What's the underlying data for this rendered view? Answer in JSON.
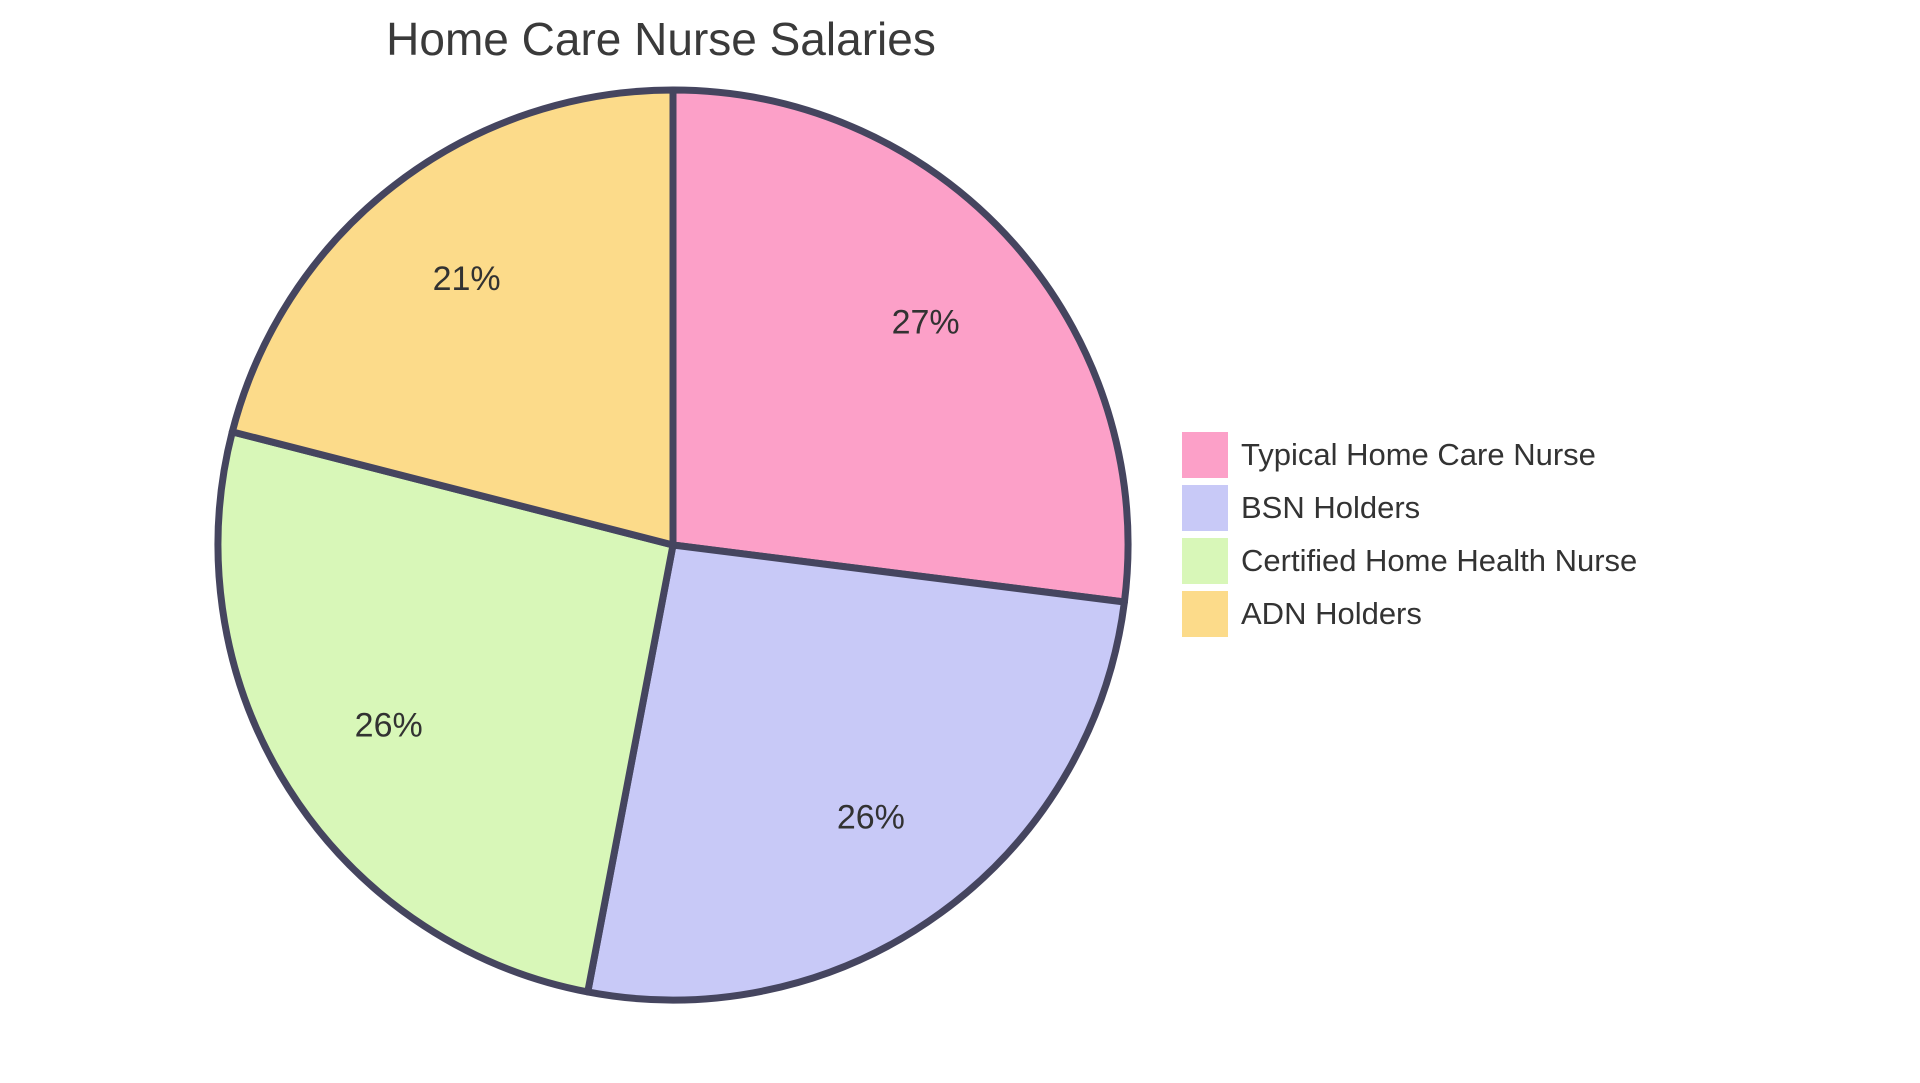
{
  "colors": {
    "background": "#FFFFFF",
    "stroke": "#45455F",
    "title_text": "#3A3A3A",
    "label_text": "#323232",
    "legend_text": "#333333"
  },
  "chart_data": {
    "type": "pie",
    "title": "Home Care Nurse Salaries",
    "start_angle": "top",
    "direction": "clockwise",
    "legend_position": "right",
    "total": 100,
    "slices": [
      {
        "label": "Typical Home Care Nurse",
        "value": 27,
        "pct_label": "27%",
        "color": "#FCA0C8"
      },
      {
        "label": "BSN Holders",
        "value": 26,
        "pct_label": "26%",
        "color": "#C8C9F7"
      },
      {
        "label": "Certified Home Health Nurse",
        "value": 26,
        "pct_label": "26%",
        "color": "#D8F7B8"
      },
      {
        "label": "ADN Holders",
        "value": 21,
        "pct_label": "21%",
        "color": "#FCDB8A"
      }
    ]
  }
}
